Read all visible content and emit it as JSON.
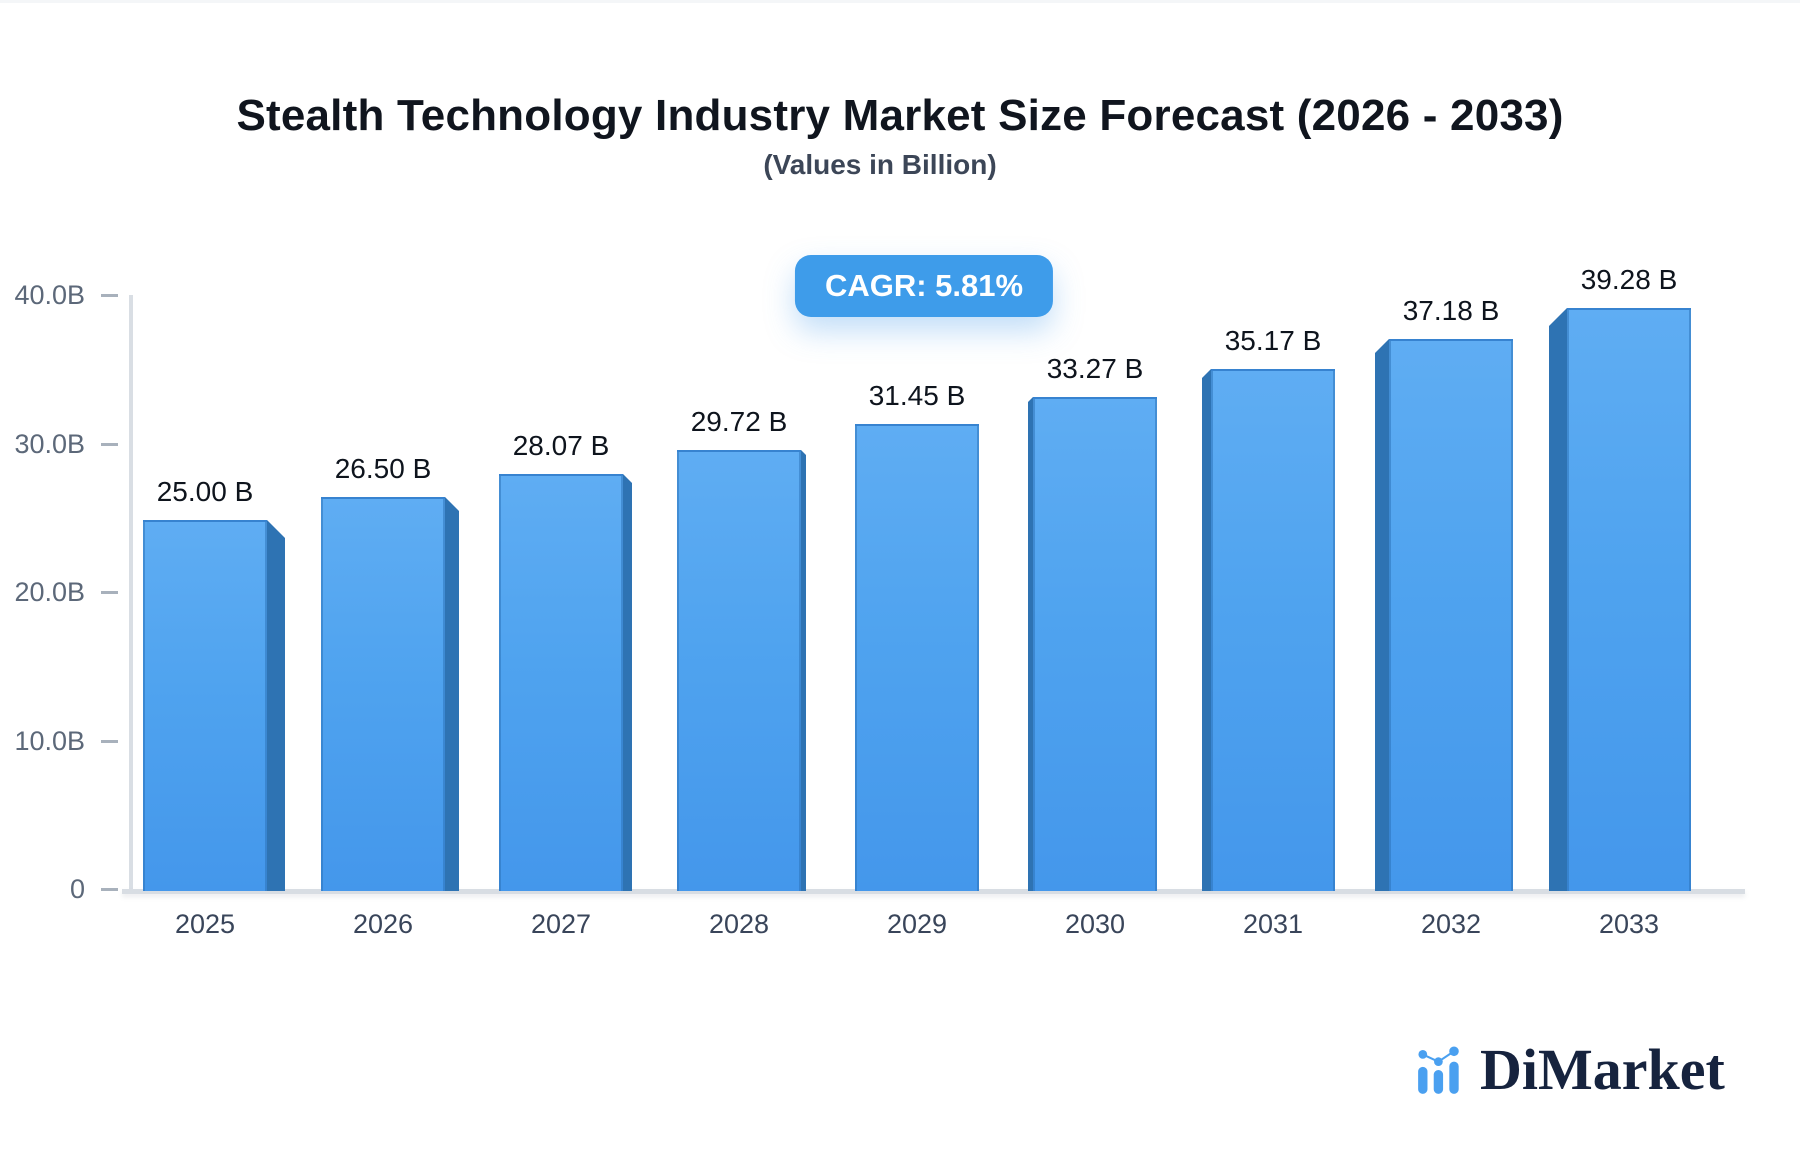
{
  "title": "Stealth Technology Industry Market Size Forecast (2026 - 2033)",
  "subtitle": "(Values in Billion)",
  "badge": {
    "label": "CAGR: 5.81%"
  },
  "chart_data": {
    "type": "bar",
    "title": "Stealth Technology Industry Market Size Forecast (2026 - 2033)",
    "subtitle": "(Values in Billion)",
    "cagr_label": "CAGR: 5.81%",
    "categories": [
      "2025",
      "2026",
      "2027",
      "2028",
      "2029",
      "2030",
      "2031",
      "2032",
      "2033"
    ],
    "values": [
      25.0,
      26.5,
      28.07,
      29.72,
      31.45,
      33.27,
      35.17,
      37.18,
      39.28
    ],
    "value_labels": [
      "25.00 B",
      "26.50 B",
      "28.07 B",
      "29.72 B",
      "31.45 B",
      "33.27 B",
      "35.17 B",
      "37.18 B",
      "39.28 B"
    ],
    "unit": "Billion",
    "xlabel": "",
    "ylabel": "",
    "ylim": [
      0,
      40
    ],
    "y_ticks": [
      {
        "value": 0,
        "label": "0"
      },
      {
        "value": 10,
        "label": "10.0B"
      },
      {
        "value": 20,
        "label": "20.0B"
      },
      {
        "value": 30,
        "label": "30.0B"
      },
      {
        "value": 40,
        "label": "40.0B"
      }
    ],
    "grid": false,
    "legend": "none",
    "colors": {
      "bar_face_top": "#5fadf3",
      "bar_face_bottom": "#4497eb",
      "bar_border": "#2a70b6",
      "bar_side_shade": "#2e73b3",
      "badge_bg": "#3e9cea",
      "badge_text": "#ffffff",
      "axis_line": "#d9dee4",
      "tick_text": "#5c6879",
      "category_text": "#39455a",
      "value_text": "#0e141d",
      "logo_blue": "#4aa0f0",
      "logo_text": "#16233e"
    }
  },
  "logo": {
    "text": "DiMarket"
  }
}
